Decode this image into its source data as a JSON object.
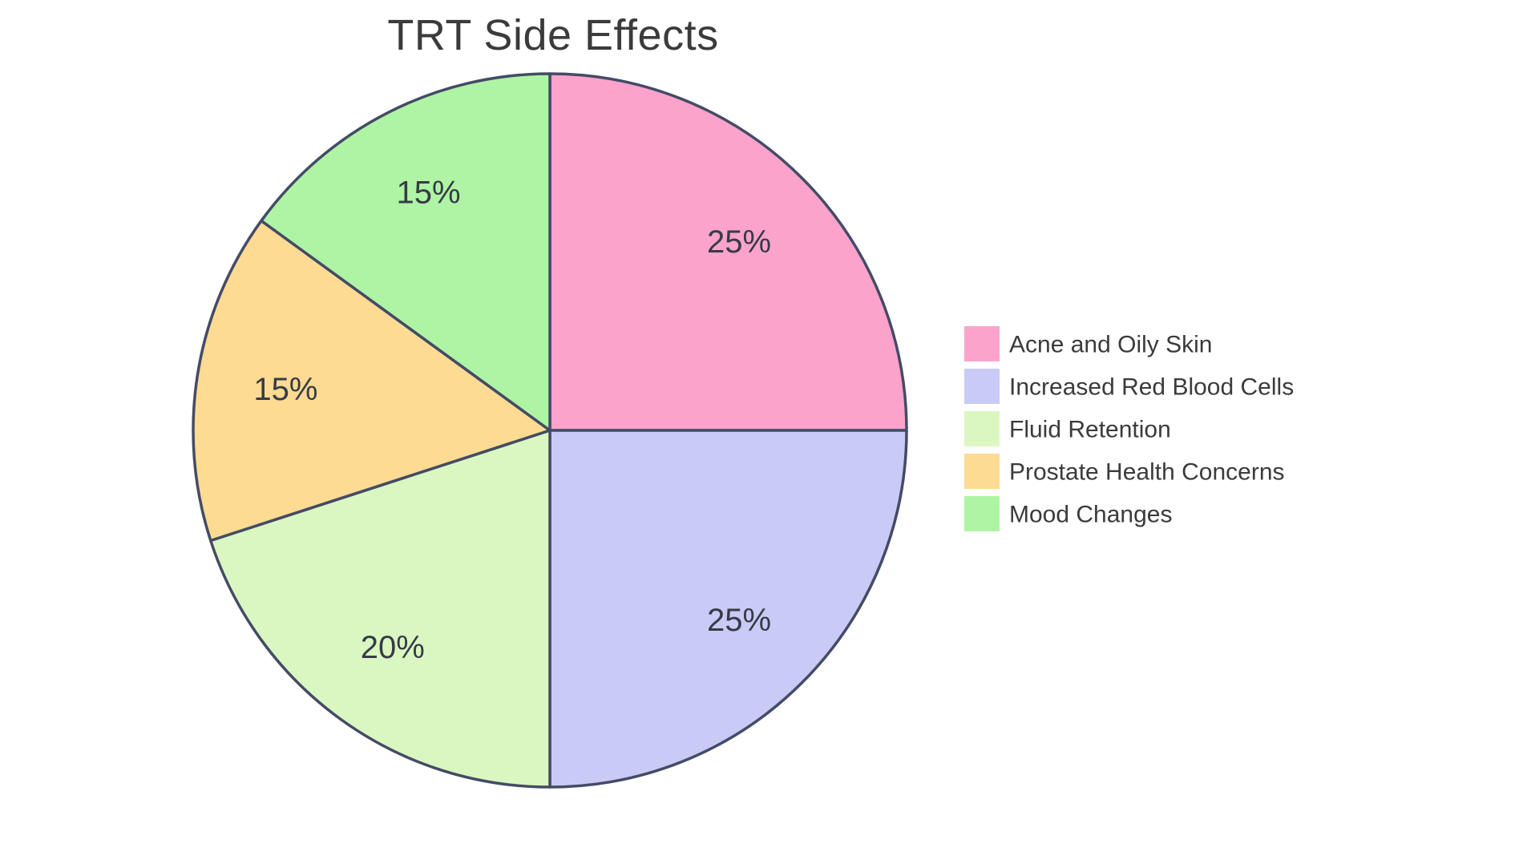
{
  "chart_data": {
    "type": "pie",
    "title": "TRT Side Effects",
    "labels": [
      "Acne and Oily Skin",
      "Increased Red Blood Cells",
      "Fluid Retention",
      "Prostate Health Concerns",
      "Mood Changes"
    ],
    "values": [
      25,
      25,
      20,
      15,
      15
    ],
    "slice_labels": [
      "25%",
      "25%",
      "20%",
      "15%",
      "15%"
    ],
    "colors": [
      "#FBA3CB",
      "#C9CBF6",
      "#DBF7C1",
      "#FEDB93",
      "#AFF4A4"
    ],
    "slice_border_color": "#444B66",
    "start_angle_deg": 0,
    "direction": "clockwise",
    "label_position": "inside",
    "label_radius_fraction": 0.75,
    "legend_position": "right"
  }
}
